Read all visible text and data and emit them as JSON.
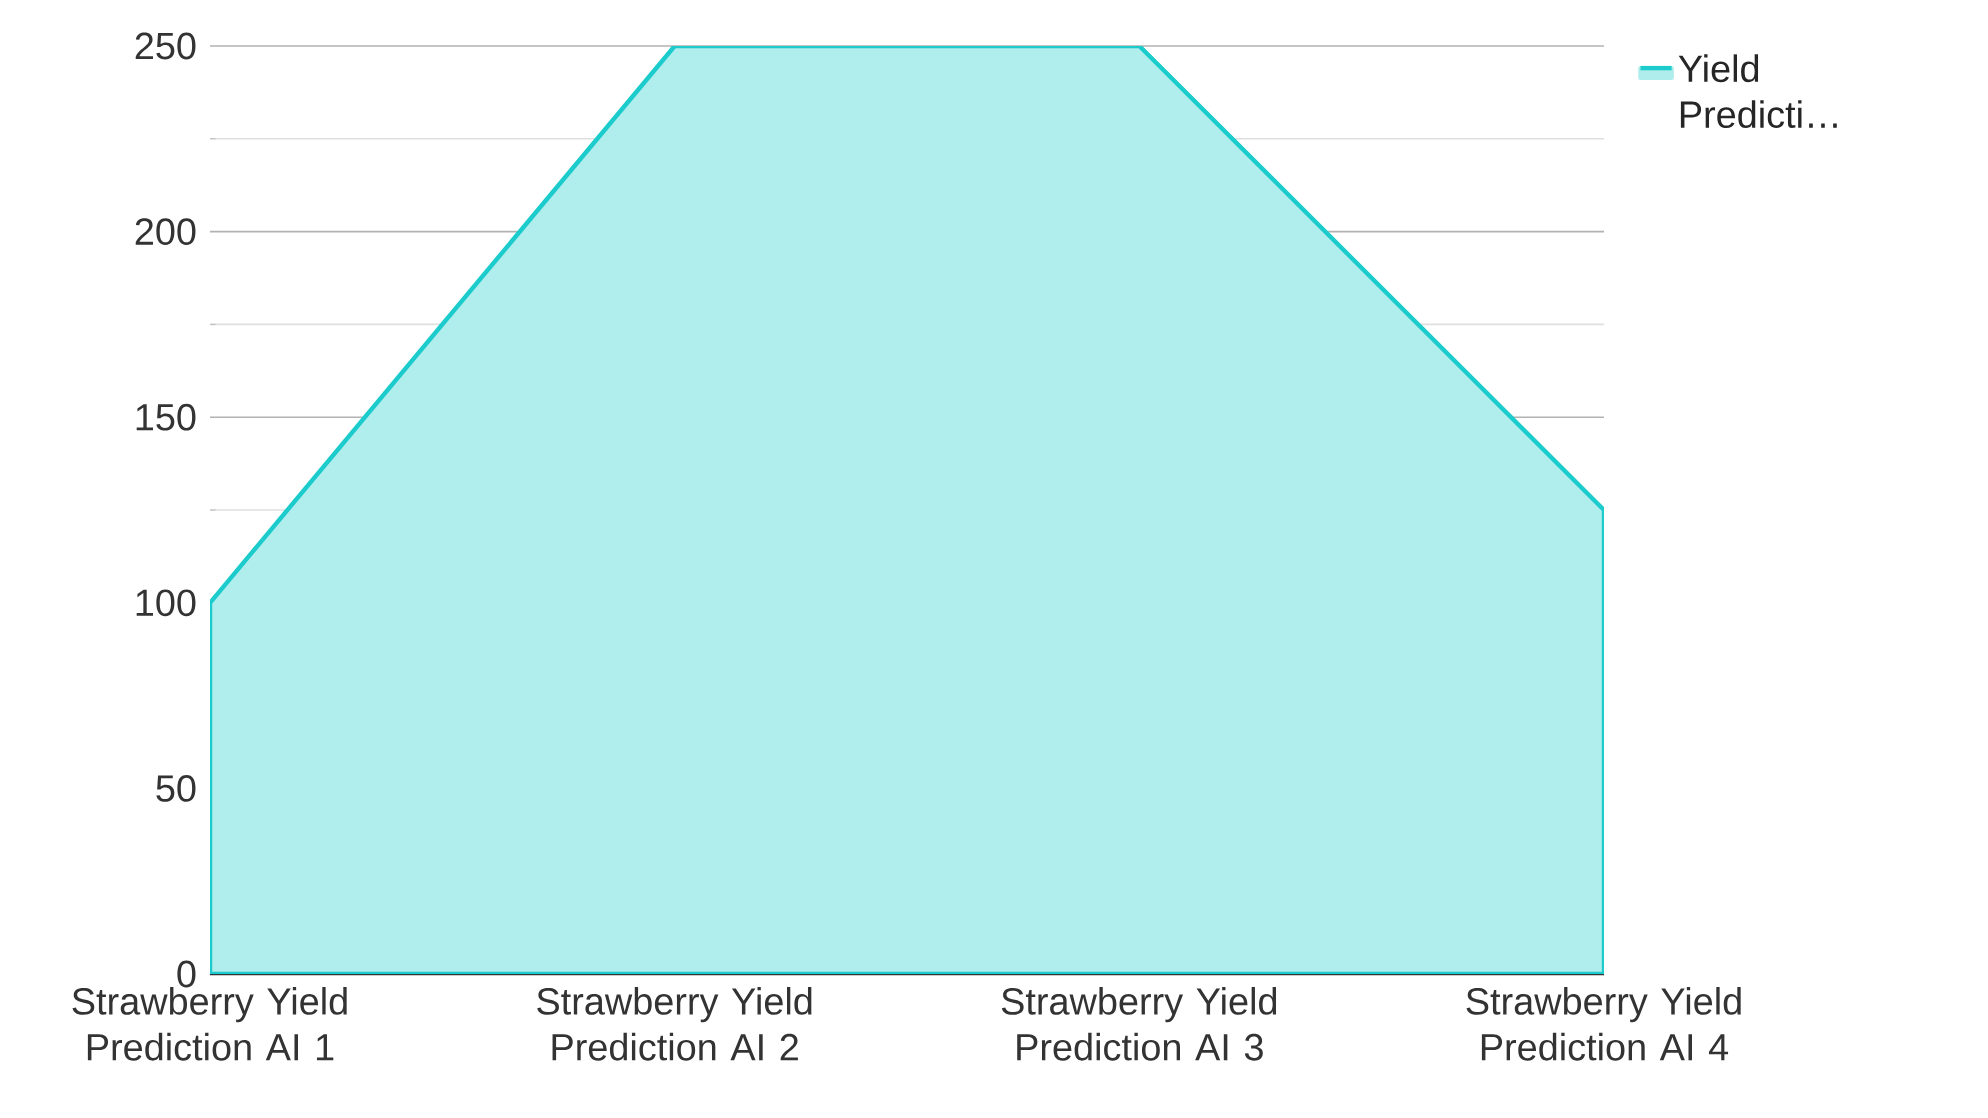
{
  "chart_data": {
    "type": "area",
    "categories": [
      "Strawberry Yield Prediction AI 1",
      "Strawberry Yield Prediction AI 2",
      "Strawberry Yield Prediction AI 3",
      "Strawberry Yield Prediction AI 4"
    ],
    "series": [
      {
        "name": "Yield Predicti…",
        "color": "#1ccccc",
        "values": [
          100,
          250,
          250,
          125
        ]
      }
    ],
    "ylim": [
      0,
      250
    ],
    "yticks": [
      0,
      50,
      100,
      150,
      200,
      250
    ],
    "grid": "y",
    "legend": "top right"
  }
}
